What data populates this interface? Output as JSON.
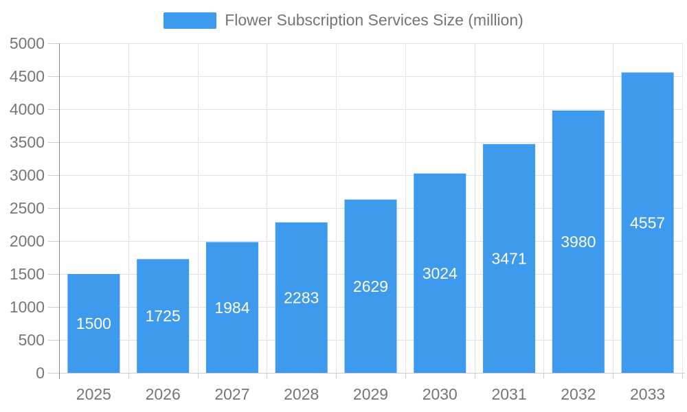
{
  "legend": {
    "label": "Flower Subscription Services Size (million)"
  },
  "colors": {
    "bar": "#3D9AEC",
    "grid": "#E2E2E2",
    "tick": "#CCCCCC",
    "x_axis_line": "#CCCCCC",
    "y_axis_line": "#898989",
    "axis_label_text": "#757575",
    "legend_text": "#757575",
    "value_label_text": "#FFFFFF",
    "background": "#FFFFFF"
  },
  "chart_data": {
    "type": "bar",
    "title": "Flower Subscription Services Size (million)",
    "categories": [
      "2025",
      "2026",
      "2027",
      "2028",
      "2029",
      "2030",
      "2031",
      "2032",
      "2033"
    ],
    "values": [
      1500,
      1725,
      1984,
      2283,
      2629,
      3024,
      3471,
      3980,
      4557
    ],
    "series_name": "Flower Subscription Services Size (million)",
    "xlabel": "",
    "ylabel": "",
    "ylim": [
      0,
      5000
    ],
    "yticks": [
      0,
      500,
      1000,
      1500,
      2000,
      2500,
      3000,
      3500,
      4000,
      4500,
      5000
    ],
    "grid": true,
    "legend_position": "top-center",
    "value_labels": "inside-center-white"
  }
}
